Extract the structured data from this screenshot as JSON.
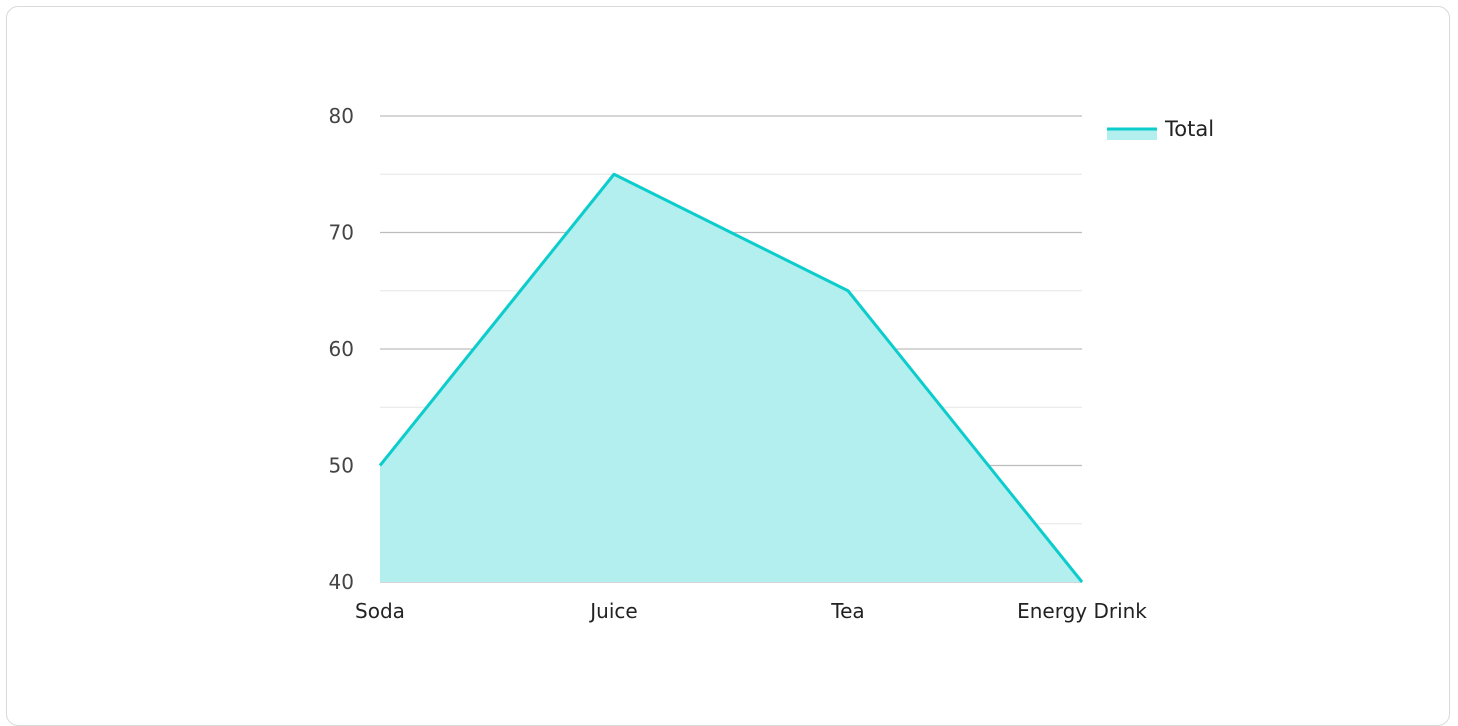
{
  "chart_data": {
    "type": "area",
    "categories": [
      "Soda",
      "Juice",
      "Tea",
      "Energy Drink"
    ],
    "series": [
      {
        "name": "Total",
        "values": [
          50,
          75,
          65,
          40
        ]
      }
    ],
    "ylim": [
      40,
      80
    ],
    "yticks": [
      40,
      50,
      60,
      70,
      80
    ],
    "grid": true,
    "legend": "top-right",
    "colors": {
      "line": "#0ccccc",
      "fill": "#b2efee",
      "grid_major": "#bdbdbd",
      "grid_minor": "#e6e6e6"
    }
  }
}
